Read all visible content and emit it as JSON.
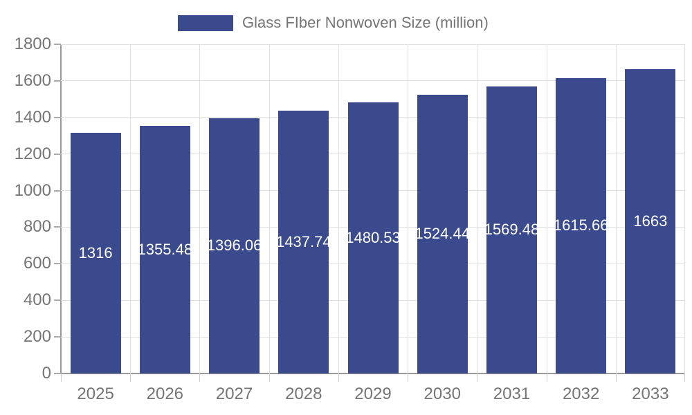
{
  "legend": {
    "label": "Glass FIber Nonwoven Size (million)"
  },
  "chart_data": {
    "type": "bar",
    "title": "Glass FIber Nonwoven Size (million)",
    "categories": [
      "2025",
      "2026",
      "2027",
      "2028",
      "2029",
      "2030",
      "2031",
      "2032",
      "2033"
    ],
    "values": [
      1316,
      1355.48,
      1396.06,
      1437.74,
      1480.53,
      1524.44,
      1569.48,
      1615.66,
      1663
    ],
    "xlabel": "",
    "ylabel": "",
    "ylim": [
      0,
      1800
    ],
    "yticks": [
      0,
      200,
      400,
      600,
      800,
      1000,
      1200,
      1400,
      1600,
      1800
    ],
    "grid": true,
    "legend_position": "top",
    "value_labels_position": "inside-center",
    "colors": {
      "bar": "#3a4a8c",
      "value_label_text": "#ffffff",
      "axis_text": "#757575",
      "gridline": "#e0e0e0",
      "axis_line": "#999999",
      "background": "#ffffff"
    }
  }
}
